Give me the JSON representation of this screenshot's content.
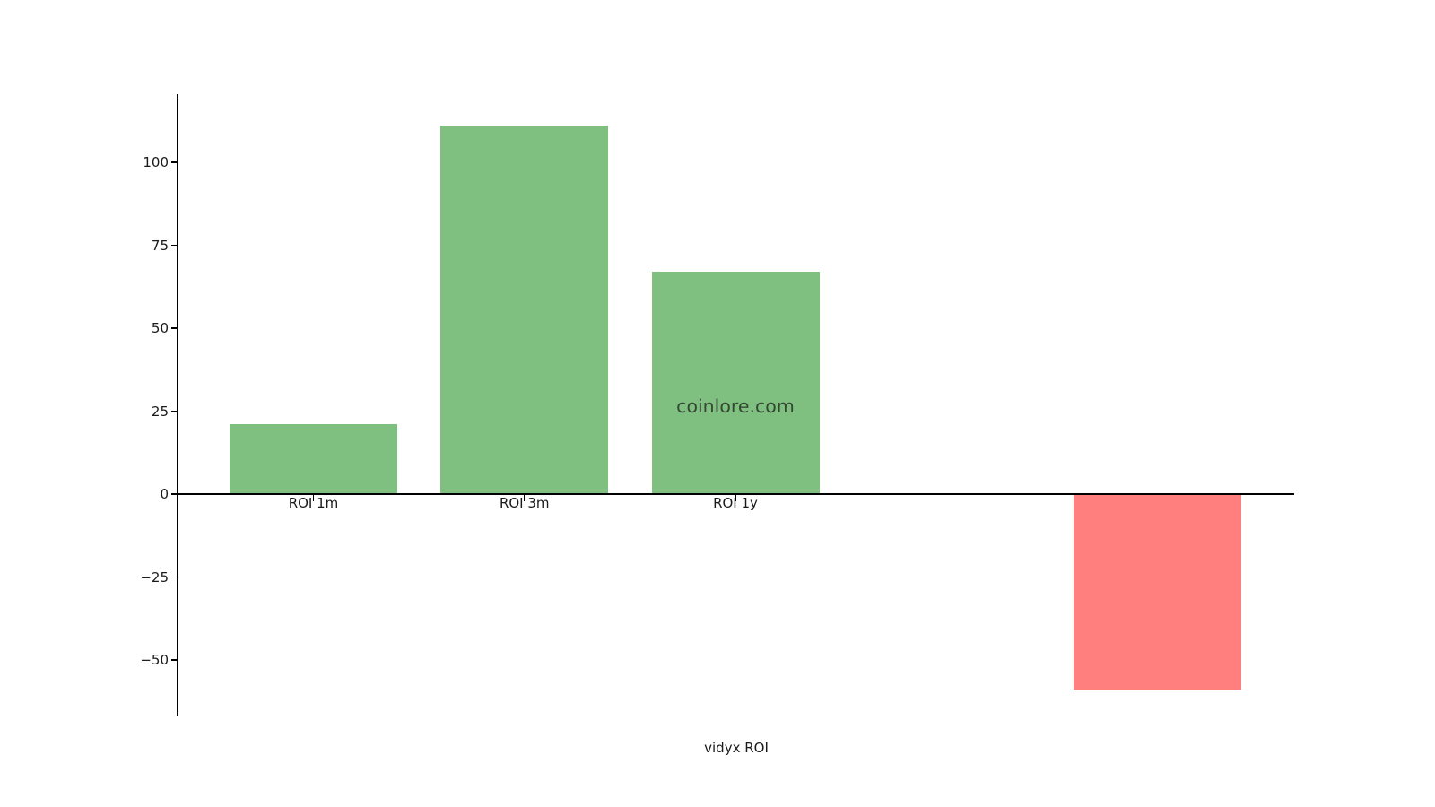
{
  "chart_data": {
    "type": "bar",
    "title": "",
    "xlabel": "vidyx ROI",
    "ylabel": "",
    "categories": [
      "ROI 1m",
      "ROI 3m",
      "ROI 1y",
      "",
      ""
    ],
    "values": [
      21,
      111,
      67,
      null,
      -59
    ],
    "yticks": [
      100,
      75,
      50,
      25,
      0,
      -25,
      -50
    ],
    "ylim": [
      -67,
      120.5
    ],
    "grid": false,
    "legend_position": "none",
    "positive_color": "#7fbf7f",
    "negative_color": "#ff7f7f",
    "axis_color": "#000000"
  },
  "watermark": {
    "text": "coinlore.com"
  }
}
